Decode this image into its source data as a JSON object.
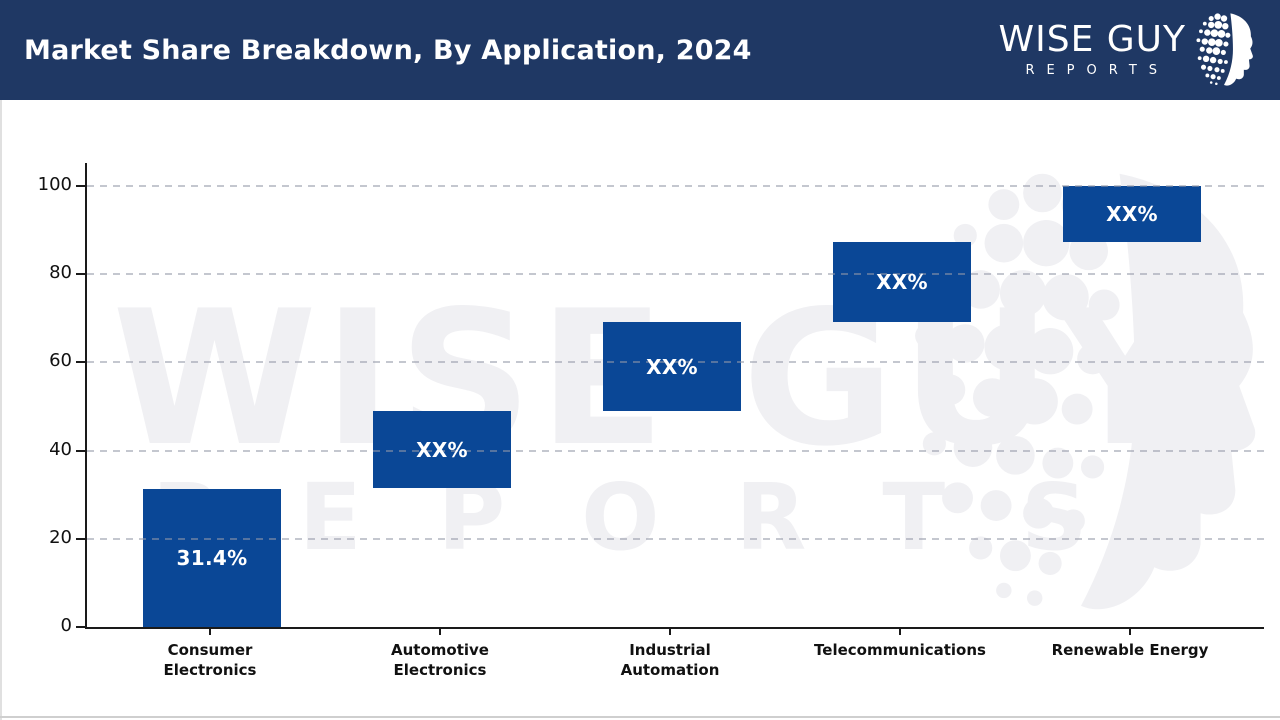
{
  "header": {
    "title": "Market Share Breakdown, By Application, 2024",
    "logo": {
      "wordmark": "WISE GUY",
      "subtitle": "REPORTS"
    }
  },
  "watermark": {
    "wordmark": "WISE GUY",
    "subtitle": "R E P O R T S"
  },
  "colors": {
    "header_bg": "#1f3864",
    "bar_fill": "#0a4796",
    "bar_label_text": "#ffffff",
    "grid_line": "#d9dde6",
    "axis_line": "#1a1a1a",
    "tick_text": "#111111",
    "watermark": "#f0f0f3"
  },
  "chart_data": {
    "type": "bar",
    "variant": "waterfall",
    "title": "Market Share Breakdown, By Application, 2024",
    "unit": "percent",
    "categories": [
      "Consumer Electronics",
      "Automotive Electronics",
      "Industrial Automation",
      "Telecommunications",
      "Renewable Energy"
    ],
    "category_lines": [
      [
        "Consumer",
        "Electronics"
      ],
      [
        "Automotive",
        "Electronics"
      ],
      [
        "Industrial",
        "Automation"
      ],
      [
        "Telecommunications"
      ],
      [
        "Renewable Energy"
      ]
    ],
    "segments": [
      {
        "category": "Consumer Electronics",
        "start": 0,
        "end": 31.4,
        "label": "31.4%"
      },
      {
        "category": "Automotive Electronics",
        "start": 31.4,
        "end": 48.9,
        "label": "XX%"
      },
      {
        "category": "Industrial Automation",
        "start": 48.9,
        "end": 69.2,
        "label": "XX%"
      },
      {
        "category": "Telecommunications",
        "start": 69.2,
        "end": 87.2,
        "label": "XX%"
      },
      {
        "category": "Renewable Energy",
        "start": 87.2,
        "end": 100,
        "label": "XX%"
      }
    ],
    "ylim": [
      0,
      100
    ],
    "yticks": [
      0,
      20,
      40,
      60,
      80,
      100
    ],
    "grid": "horizontal-dashed",
    "legend_position": "none"
  }
}
